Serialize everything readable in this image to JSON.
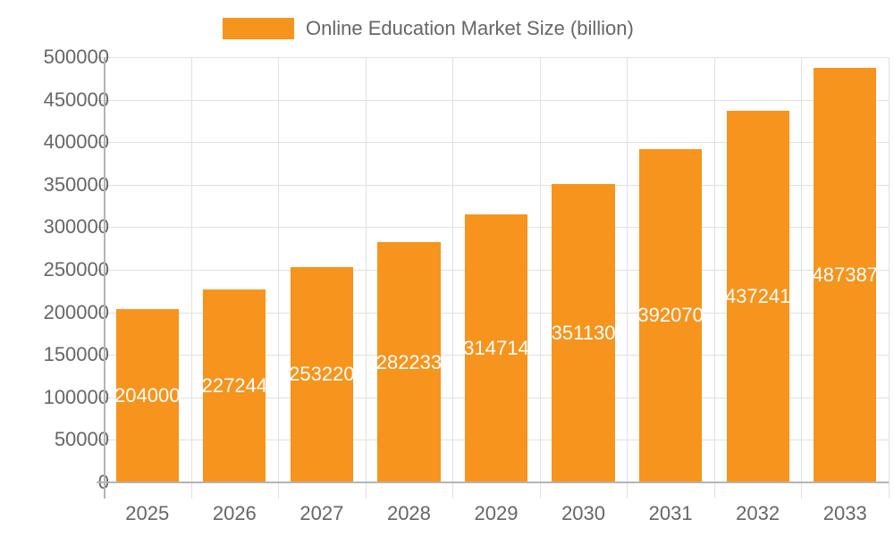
{
  "chart_data": {
    "type": "bar",
    "title": "",
    "legend": [
      "Online Education Market Size (billion)"
    ],
    "legend_position": "top",
    "categories": [
      "2025",
      "2026",
      "2027",
      "2028",
      "2029",
      "2030",
      "2031",
      "2032",
      "2033"
    ],
    "series": [
      {
        "name": "Online Education Market Size (billion)",
        "values": [
          204000,
          227244,
          253220,
          282233,
          314714,
          351130,
          392070,
          437241,
          487387
        ],
        "color": "#f7941d"
      }
    ],
    "data_labels": [
      "204000",
      "227244",
      "253220",
      "282233",
      "314714",
      "351130",
      "392070",
      "437241",
      "487387"
    ],
    "xlabel": "",
    "ylabel": "",
    "ylim": [
      0,
      500000
    ],
    "yticks": [
      "0",
      "50000",
      "100000",
      "150000",
      "200000",
      "250000",
      "300000",
      "350000",
      "400000",
      "450000",
      "500000"
    ],
    "grid": true
  },
  "colors": {
    "bar": "#f7941d",
    "text": "#666666",
    "grid": "#e1e1e1",
    "axis": "#b4b4b4",
    "data_label": "#ffffff"
  }
}
